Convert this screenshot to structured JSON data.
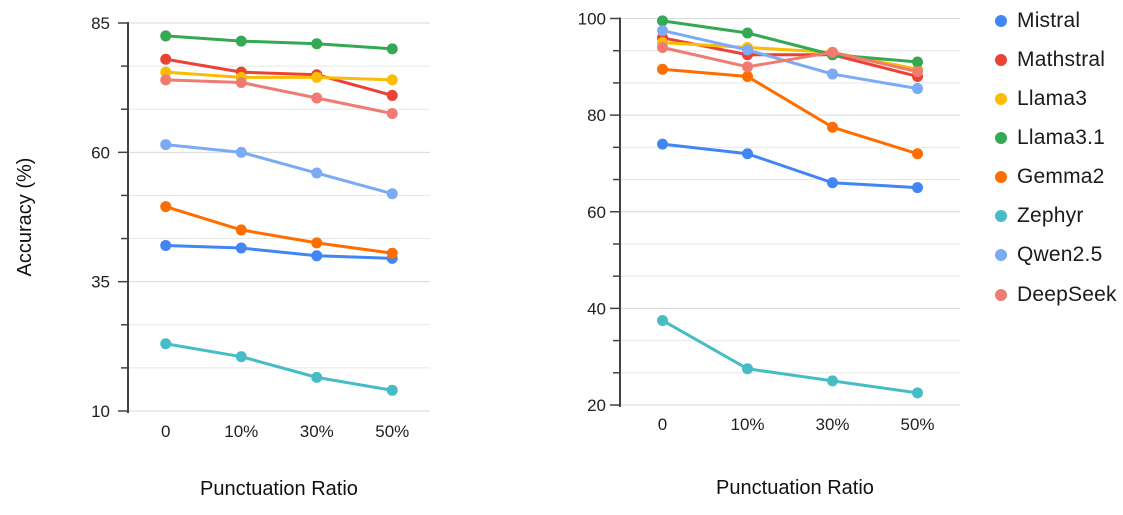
{
  "figure": {
    "background": "#ffffff",
    "axis_color": "#424242",
    "major_gridline_color": "#d9d9d9",
    "minor_gridline_color": "#e8e8e8",
    "text_color": "#1f1f1f"
  },
  "chart_data": [
    {
      "type": "line",
      "title": "",
      "xlabel": "Punctuation Ratio",
      "ylabel": "Accuracy (%)",
      "categories": [
        "0",
        "10%",
        "30%",
        "50%"
      ],
      "ylim": [
        10,
        85
      ],
      "y_major_ticks": [
        85,
        60,
        35,
        10
      ],
      "y_minor_gridlines_between_majors": 2,
      "grid": true,
      "legend_position": "none",
      "series": [
        {
          "name": "Mistral",
          "color": "#4285F4",
          "values": [
            42,
            41.5,
            40,
            39.5
          ]
        },
        {
          "name": "Mathstral",
          "color": "#EA4335",
          "values": [
            78,
            75.5,
            75,
            71
          ]
        },
        {
          "name": "Llama3",
          "color": "#FBBC04",
          "values": [
            75.5,
            74.5,
            74.5,
            74
          ]
        },
        {
          "name": "Llama3.1",
          "color": "#34A853",
          "values": [
            82.5,
            81.5,
            81,
            80
          ]
        },
        {
          "name": "Gemma2",
          "color": "#FF6D01",
          "values": [
            49.5,
            45,
            42.5,
            40.5
          ]
        },
        {
          "name": "Zephyr",
          "color": "#46BDC6",
          "values": [
            23,
            20.5,
            16.5,
            14
          ]
        },
        {
          "name": "Qwen2.5",
          "color": "#7BAAF7",
          "values": [
            61.5,
            60,
            56,
            52
          ]
        },
        {
          "name": "DeepSeek",
          "color": "#F07B72",
          "values": [
            74,
            73.5,
            70.5,
            67.5
          ]
        }
      ]
    },
    {
      "type": "line",
      "title": "",
      "xlabel": "Punctuation Ratio",
      "ylabel": "",
      "categories": [
        "0",
        "10%",
        "30%",
        "50%"
      ],
      "ylim": [
        20,
        100
      ],
      "y_major_ticks": [
        100,
        80,
        60,
        40,
        20
      ],
      "y_minor_gridlines_between_majors": 2,
      "grid": true,
      "legend_position": "right",
      "series": [
        {
          "name": "Mistral",
          "color": "#4285F4",
          "values": [
            74,
            72,
            66,
            65
          ]
        },
        {
          "name": "Mathstral",
          "color": "#EA4335",
          "values": [
            96,
            92.5,
            92.5,
            88
          ]
        },
        {
          "name": "Llama3",
          "color": "#FBBC04",
          "values": [
            95,
            94,
            93,
            89.5
          ]
        },
        {
          "name": "Llama3.1",
          "color": "#34A853",
          "values": [
            99.5,
            97,
            92.5,
            91
          ]
        },
        {
          "name": "Gemma2",
          "color": "#FF6D01",
          "values": [
            89.5,
            88,
            77.5,
            72
          ]
        },
        {
          "name": "Zephyr",
          "color": "#46BDC6",
          "values": [
            37.5,
            27.5,
            25,
            22.5
          ]
        },
        {
          "name": "Qwen2.5",
          "color": "#7BAAF7",
          "values": [
            97.5,
            93.5,
            88.5,
            85.5
          ]
        },
        {
          "name": "DeepSeek",
          "color": "#F07B72",
          "values": [
            94,
            90,
            93,
            89
          ]
        }
      ]
    }
  ],
  "legend": {
    "items": [
      "Mistral",
      "Mathstral",
      "Llama3",
      "Llama3.1",
      "Gemma2",
      "Zephyr",
      "Qwen2.5",
      "DeepSeek"
    ]
  }
}
